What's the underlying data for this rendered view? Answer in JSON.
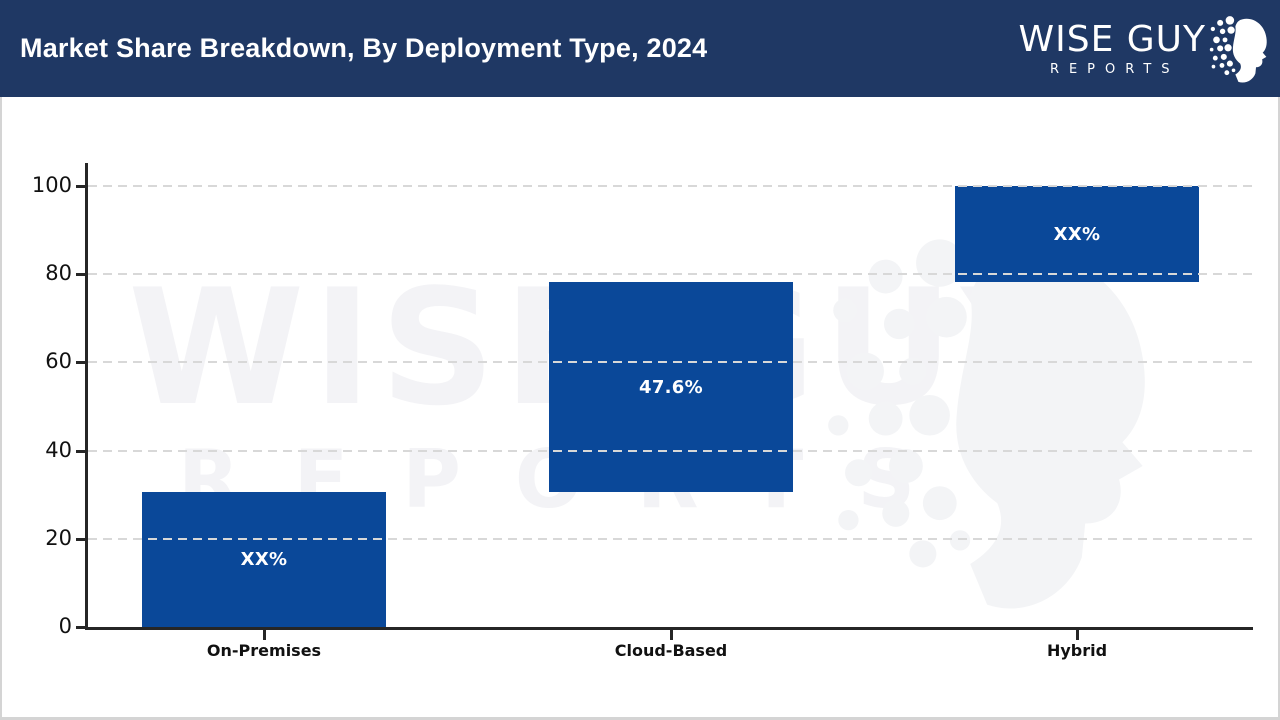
{
  "header": {
    "title": "Market Share Breakdown, By Deployment Type, 2024",
    "bg_color": "#1f3864",
    "logo": {
      "line1": "WISE GUY",
      "line2": "REPORTS"
    }
  },
  "watermark": {
    "line1": "WISE GUY",
    "line2": "REPORTS"
  },
  "chart_data": {
    "type": "bar",
    "variant": "floating-segment",
    "title": "Market Share Breakdown, By Deployment Type, 2024",
    "categories": [
      "On-Premises",
      "Cloud-Based",
      "Hybrid"
    ],
    "segments": [
      {
        "category": "On-Premises",
        "from": 0,
        "to": 30.6,
        "label": "XX%"
      },
      {
        "category": "Cloud-Based",
        "from": 30.6,
        "to": 78.2,
        "label": "47.6%"
      },
      {
        "category": "Hybrid",
        "from": 78.2,
        "to": 100,
        "label": "XX%"
      }
    ],
    "xlabel": "",
    "ylabel": "",
    "ylim": [
      0,
      100
    ],
    "yticks": [
      0,
      20,
      40,
      60,
      80,
      100
    ],
    "grid": "horizontal-dashed",
    "legend": "none",
    "bar_color": "#0a4899",
    "bar_label_color": "#ffffff",
    "axis_color": "#262626",
    "gridline_color": "#d8d8d8"
  }
}
